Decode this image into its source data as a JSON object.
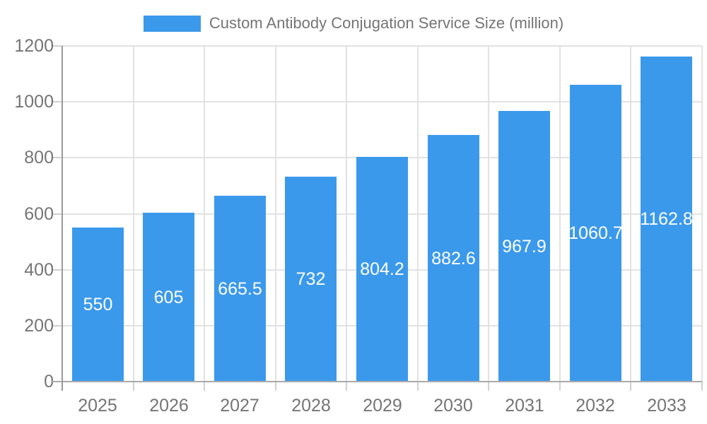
{
  "chart_data": {
    "type": "bar",
    "title": "Custom Antibody Conjugation Service Size (million)",
    "legend": {
      "label": "Custom Antibody Conjugation Service Size (million)",
      "position": "top-center"
    },
    "categories": [
      "2025",
      "2026",
      "2027",
      "2028",
      "2029",
      "2030",
      "2031",
      "2032",
      "2033"
    ],
    "values": [
      550,
      605,
      665.5,
      732,
      804.2,
      882.6,
      967.9,
      1060.7,
      1162.8
    ],
    "values_display": [
      "550",
      "605",
      "665.5",
      "732",
      "804.2",
      "882.6",
      "967.9",
      "1060.7",
      "1162.8"
    ],
    "xlabel": "",
    "ylabel": "",
    "ylim": [
      0,
      1200
    ],
    "y_ticks": [
      0,
      200,
      400,
      600,
      800,
      1000,
      1200
    ],
    "y_tick_labels": [
      "0",
      "200",
      "400",
      "600",
      "800",
      "1000",
      "1200"
    ],
    "grid": true,
    "colors": {
      "bar": "#3B99EC",
      "value_label": "#FFFFFF",
      "axis_text": "#757575",
      "gridline": "#E2E2E2",
      "axis_line": "#AAAAAA"
    }
  }
}
